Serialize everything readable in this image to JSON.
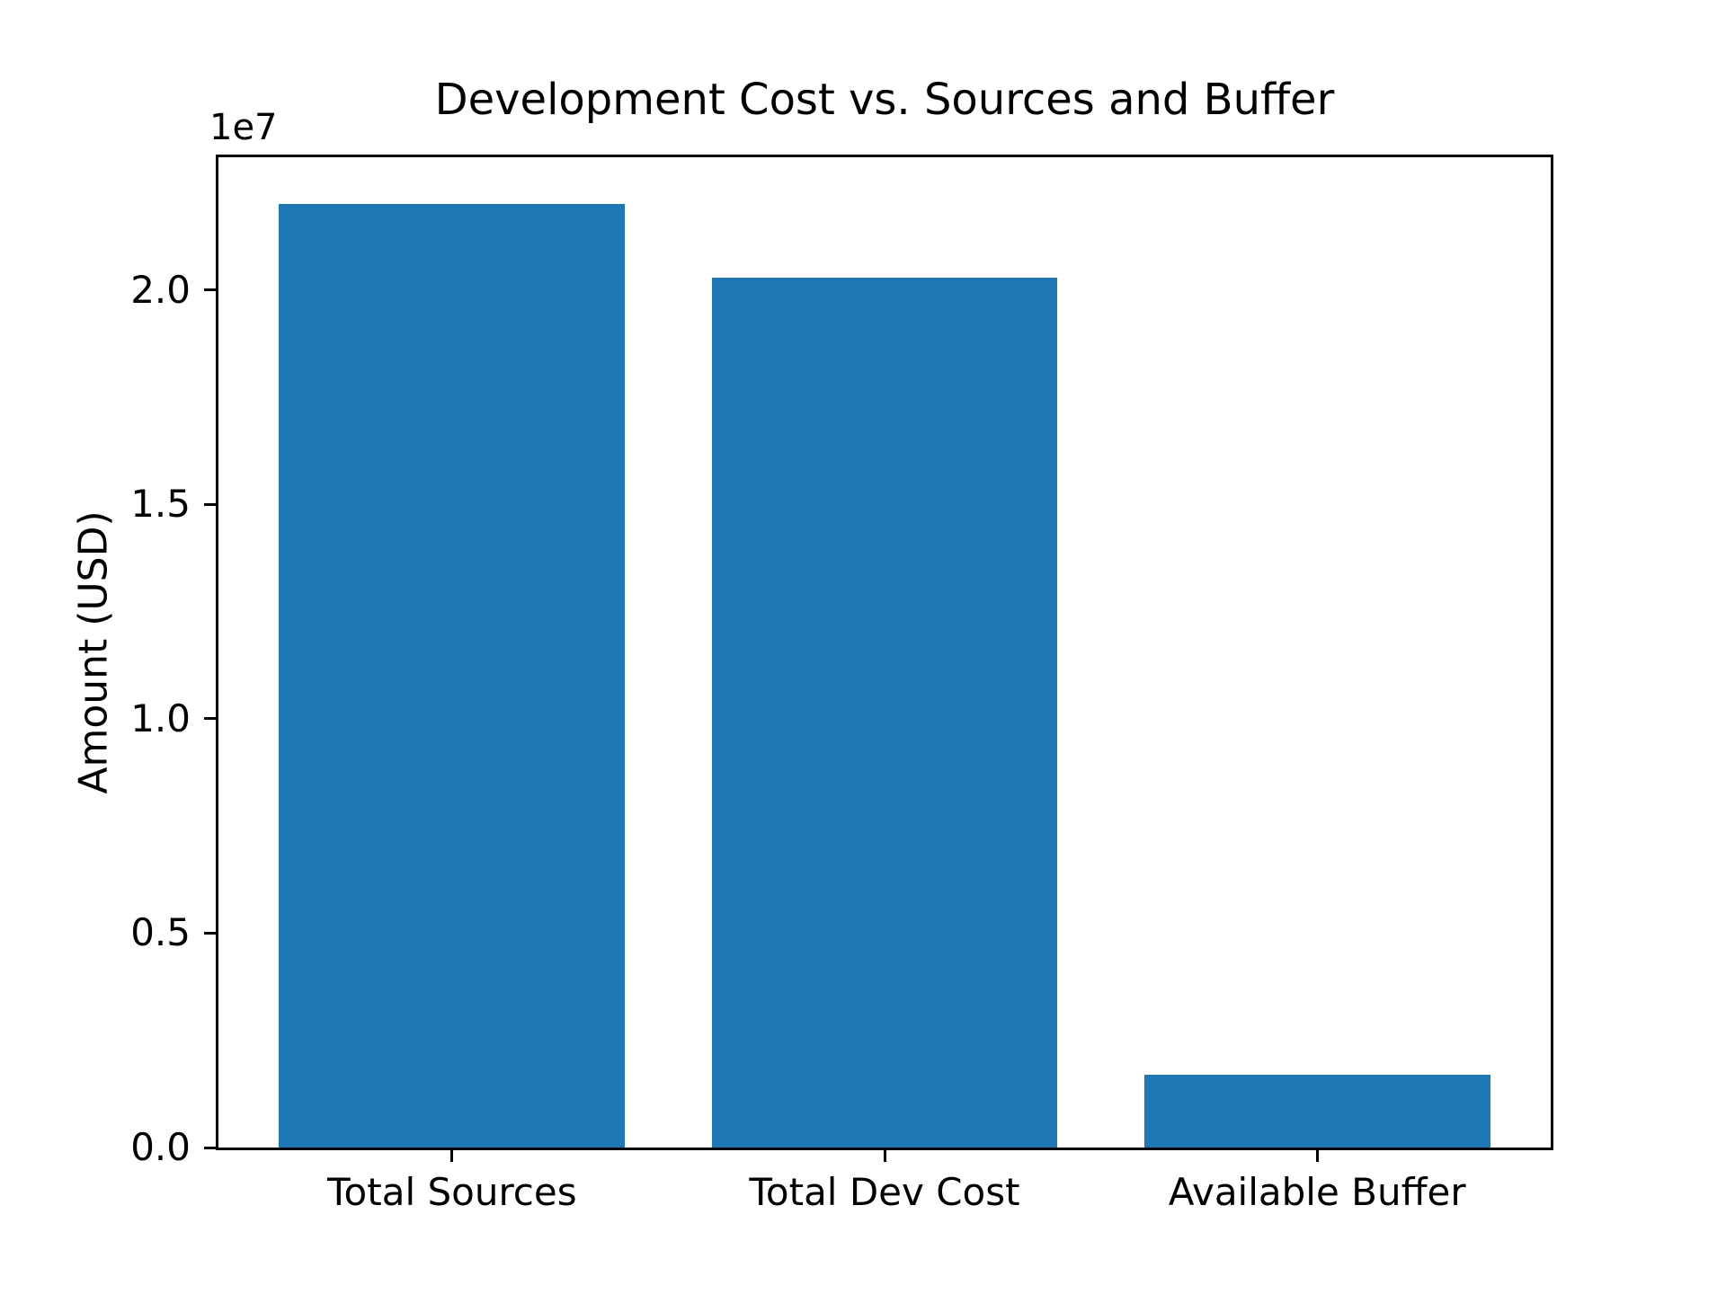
{
  "figure": {
    "title": "Development Cost vs. Sources and Buffer"
  },
  "chart_data": {
    "type": "bar",
    "title": "Development Cost vs. Sources and Buffer",
    "categories": [
      "Total Sources",
      "Total Dev Cost",
      "Available Buffer"
    ],
    "values": [
      22000000,
      20300000,
      1700000
    ],
    "xlabel": "",
    "ylabel": "Amount (USD)",
    "y_offset_label": "1e7",
    "ylim": [
      0,
      23100000
    ],
    "yticks": [
      0,
      5000000,
      10000000,
      15000000,
      20000000
    ],
    "ytick_labels": [
      "0.0",
      "0.5",
      "1.0",
      "1.5",
      "2.0"
    ],
    "bar_color": "#1f77b4",
    "axis_color": "#000000",
    "background_color": "#ffffff",
    "grid": false,
    "legend": null
  }
}
